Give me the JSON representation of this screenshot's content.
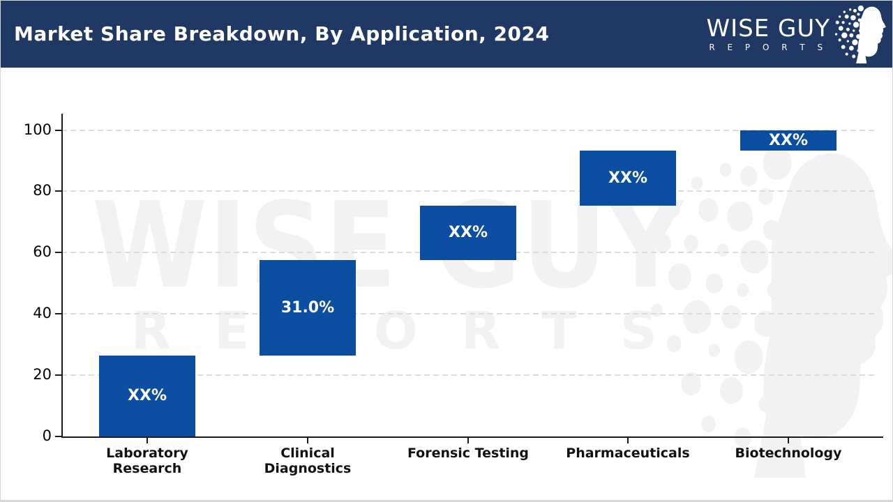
{
  "header": {
    "title": "Market Share Breakdown, By Application, 2024",
    "logo_line1": "WISE GUY",
    "logo_line2": "R E P O R T S"
  },
  "watermark": {
    "line1": "WISE GUY",
    "line2": "REPORTS"
  },
  "colors": {
    "header_bg": "#1f3864",
    "bar": "#0b4da1",
    "bar_label_text": "#ffffff",
    "gridline": "#dcdcdc",
    "axis": "#1a1a1a",
    "watermark": "#f2f2f2"
  },
  "chart_data": {
    "type": "bar",
    "subtype": "waterfall",
    "title": "Market Share Breakdown, By Application, 2024",
    "categories": [
      "Laboratory Research",
      "Clinical Diagnostics",
      "Forensic Testing",
      "Pharmaceuticals",
      "Biotechnology"
    ],
    "category_labels": [
      [
        "Laboratory",
        "Research"
      ],
      [
        "Clinical",
        "Diagnostics"
      ],
      [
        "Forensic Testing"
      ],
      [
        "Pharmaceuticals"
      ],
      [
        "Biotechnology"
      ]
    ],
    "segments": [
      {
        "category": "Laboratory Research",
        "start": 0,
        "end": 26.5,
        "label": "XX%"
      },
      {
        "category": "Clinical Diagnostics",
        "start": 26.5,
        "end": 57.5,
        "label": "31.0%"
      },
      {
        "category": "Forensic Testing",
        "start": 57.5,
        "end": 75.4,
        "label": "XX%"
      },
      {
        "category": "Pharmaceuticals",
        "start": 75.4,
        "end": 93.2,
        "label": "XX%"
      },
      {
        "category": "Biotechnology",
        "start": 93.2,
        "end": 100,
        "label": "XX%"
      }
    ],
    "yticks": [
      0,
      20,
      40,
      60,
      80,
      100
    ],
    "ylim": [
      0,
      105
    ],
    "xlabel": "",
    "ylabel": "",
    "grid": "horizontal-dashed",
    "legend": "none"
  }
}
